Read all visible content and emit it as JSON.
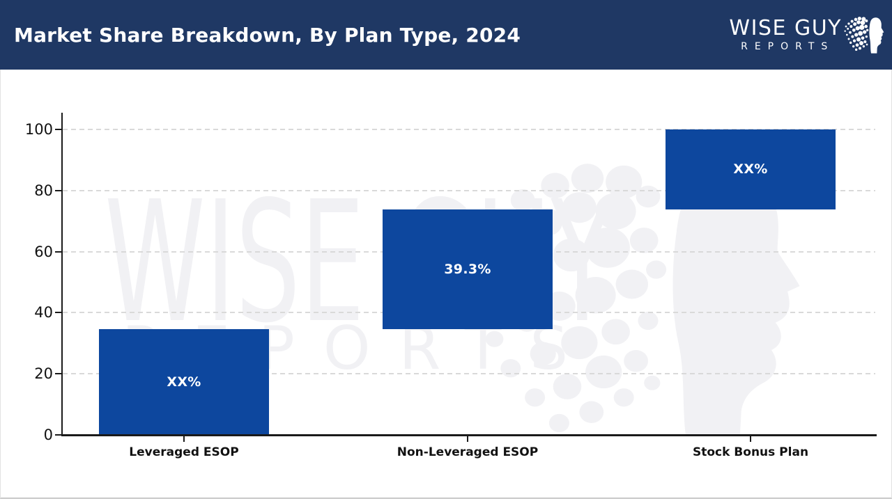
{
  "header": {
    "title": "Market Share Breakdown, By Plan Type, 2024",
    "logo": {
      "line1": "WISE GUY",
      "line2": "REPORTS"
    }
  },
  "watermark": {
    "line1": "WISE GUY",
    "line2": "REPORTS"
  },
  "chart_data": {
    "type": "bar",
    "subtype": "waterfall",
    "title": "Market Share Breakdown, By Plan Type, 2024",
    "categories": [
      "Leveraged ESOP",
      "Non-Leveraged ESOP",
      "Stock Bonus Plan"
    ],
    "segments": [
      {
        "category": "Leveraged ESOP",
        "start": 0,
        "end": 34.6,
        "height": 34.6,
        "label": "XX%"
      },
      {
        "category": "Non-Leveraged ESOP",
        "start": 34.6,
        "end": 73.9,
        "height": 39.3,
        "label": "39.3%"
      },
      {
        "category": "Stock Bonus Plan",
        "start": 73.9,
        "end": 100,
        "height": 26.1,
        "label": "XX%"
      }
    ],
    "xlabel": "",
    "ylabel": "",
    "ylim": [
      0,
      100
    ],
    "yticks": [
      0,
      20,
      40,
      60,
      80,
      100
    ],
    "grid": "horizontal-dashed",
    "legend": "none",
    "bar_color": "#0d479e",
    "bar_label_color": "#ffffff"
  },
  "colors": {
    "header_bg": "#1f3864",
    "bar": "#0d479e",
    "grid": "#d9d9d9",
    "axis": "#1a1a1a",
    "watermark": "#f1f1f4",
    "bottom_rule": "#c8c8c8"
  }
}
